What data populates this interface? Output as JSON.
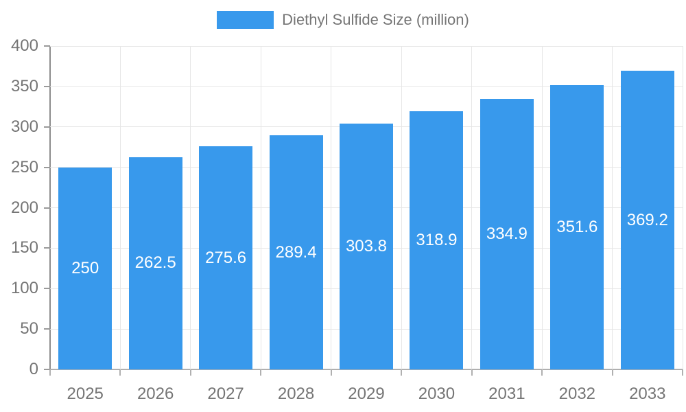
{
  "legend": {
    "label": "Diethyl Sulfide Size (million)",
    "swatch_color": "#3899EC"
  },
  "chart_data": {
    "type": "bar",
    "title": "",
    "xlabel": "",
    "ylabel": "",
    "categories": [
      "2025",
      "2026",
      "2027",
      "2028",
      "2029",
      "2030",
      "2031",
      "2032",
      "2033"
    ],
    "series": [
      {
        "name": "Diethyl Sulfide Size (million)",
        "values": [
          250,
          262.5,
          275.6,
          289.4,
          303.8,
          318.9,
          334.9,
          351.6,
          369.2
        ],
        "value_labels": [
          "250",
          "262.5",
          "275.6",
          "289.4",
          "303.8",
          "318.9",
          "334.9",
          "351.6",
          "369.2"
        ],
        "color": "#3899EC"
      }
    ],
    "ylim": [
      0,
      400
    ],
    "y_ticks": [
      0,
      50,
      100,
      150,
      200,
      250,
      300,
      350,
      400
    ],
    "y_tick_labels": [
      "0",
      "50",
      "100",
      "150",
      "200",
      "250",
      "300",
      "350",
      "400"
    ],
    "grid": true,
    "legend_position": "top",
    "bar_label_position": "center",
    "bar_label_color": "#ffffff"
  },
  "colors": {
    "bar": "#3899EC",
    "axis_text": "#757575",
    "gridline": "#e6e6e6",
    "y_axis_line": "#8c8c8c",
    "x_axis_line": "#b0b0b0",
    "background": "#ffffff"
  }
}
